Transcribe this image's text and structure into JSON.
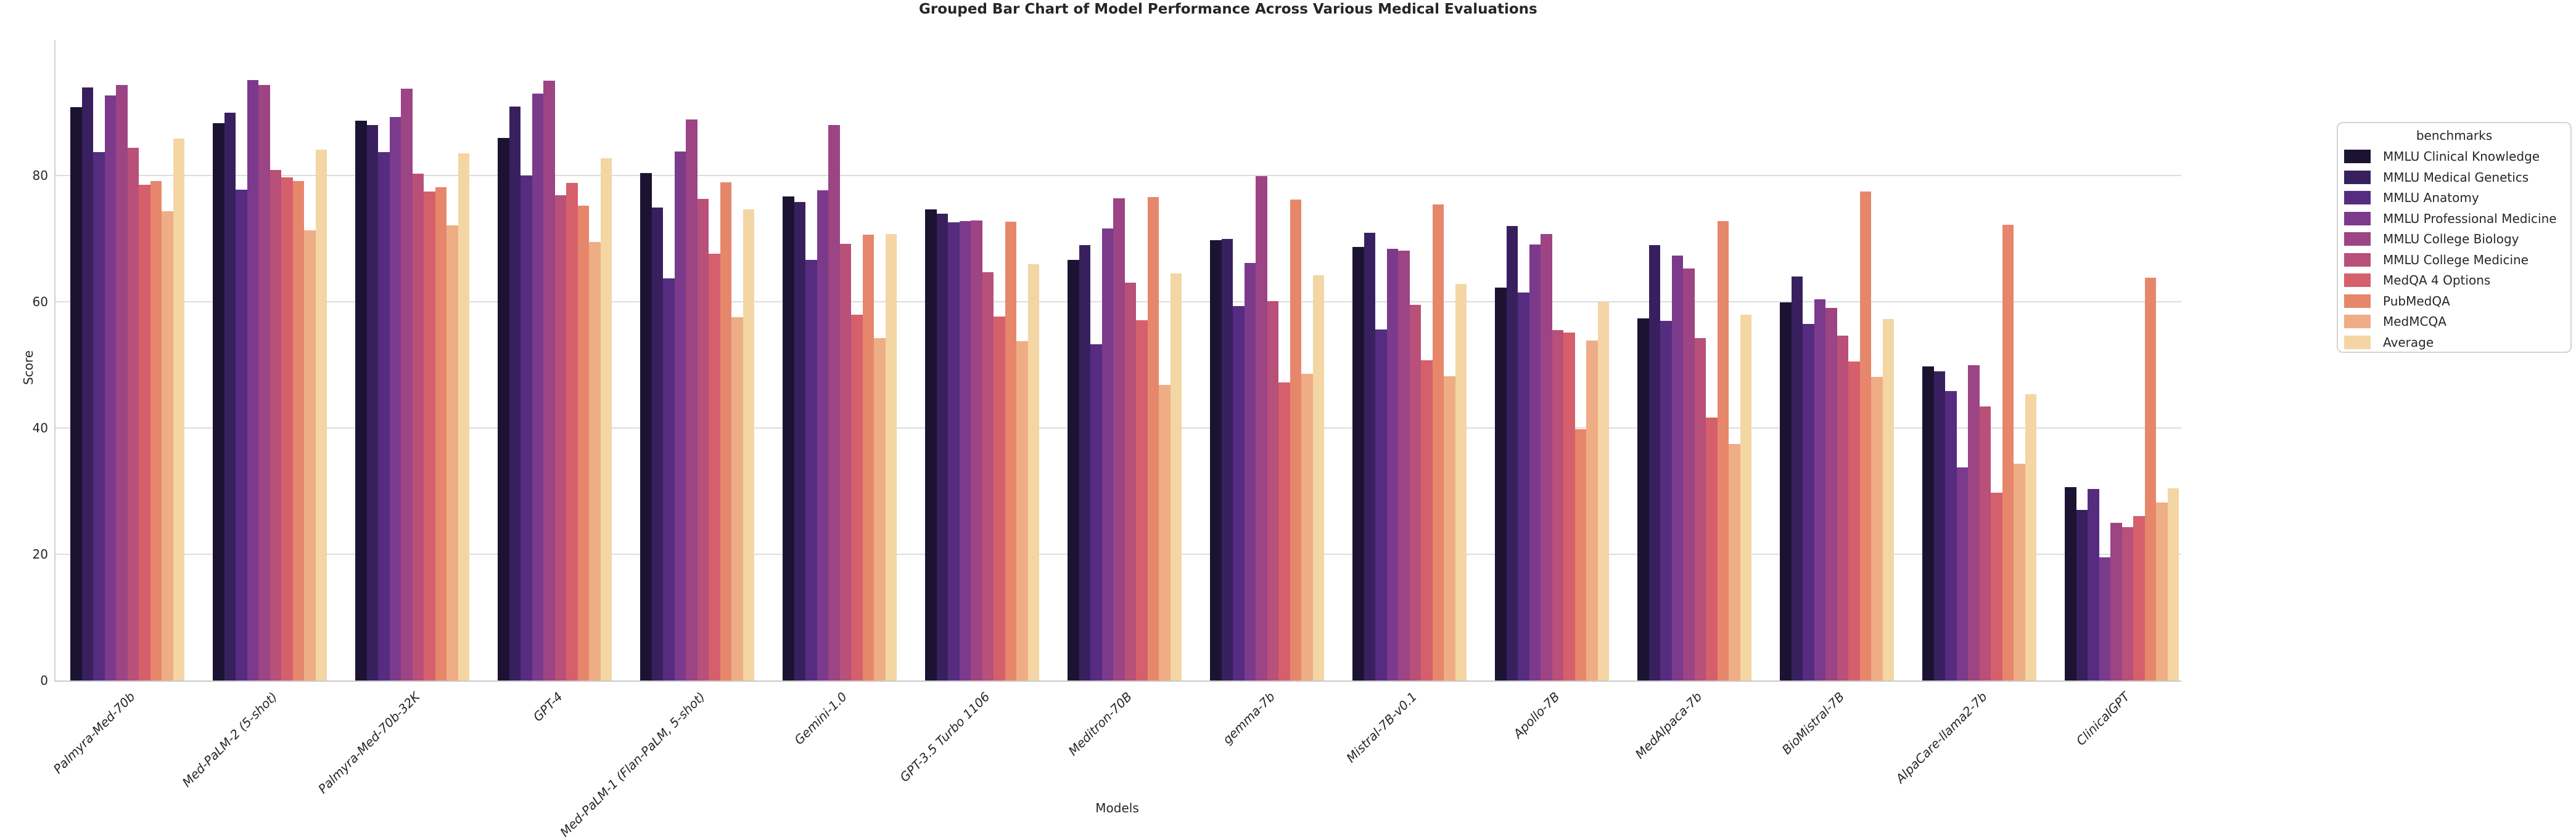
{
  "title": "Grouped Bar Chart of Model Performance Across Various Medical Evaluations",
  "xlabel": "Models",
  "ylabel": "Score",
  "legend_title": "benchmarks",
  "chart_data": {
    "type": "bar",
    "title": "Grouped Bar Chart of Model Performance Across Various Medical Evaluations",
    "xlabel": "Models",
    "ylabel": "Score",
    "ylim": [
      0,
      101.5
    ],
    "yticks": [
      0,
      20,
      40,
      60,
      80
    ],
    "grid": true,
    "legend_position": "right",
    "legend_title": "benchmarks",
    "categories": [
      "Palmyra-Med-70b",
      "Med-PaLM-2 (5-shot)",
      "Palmyra-Med-70b-32K",
      "GPT-4",
      "Med-PaLM-1 (Flan-PaLM, 5-shot)",
      "Gemini-1.0",
      "GPT-3.5 Turbo 1106",
      "Meditron-70B",
      "gemma-7b",
      "Mistral-7B-v0.1",
      "Apollo-7B",
      "MedAlpaca-7b",
      "BioMistral-7B",
      "AlpaCare-llama2-7b",
      "ClinicalGPT"
    ],
    "series": [
      {
        "name": "MMLU Clinical Knowledge",
        "color": "#1c1333",
        "values": [
          90.9,
          88.3,
          88.7,
          86.0,
          80.4,
          76.7,
          74.7,
          66.7,
          69.8,
          68.7,
          62.3,
          57.4,
          59.9,
          49.8,
          30.6
        ]
      },
      {
        "name": "MMLU Medical Genetics",
        "color": "#38205f",
        "values": [
          94.0,
          90.0,
          88.0,
          91.0,
          75.0,
          75.8,
          74.0,
          69.0,
          70.0,
          71.0,
          72.0,
          69.0,
          64.0,
          49.0,
          27.0
        ]
      },
      {
        "name": "MMLU Anatomy",
        "color": "#552c80",
        "values": [
          83.7,
          77.8,
          83.7,
          80.0,
          63.7,
          66.7,
          72.6,
          53.3,
          59.3,
          55.6,
          61.5,
          57.0,
          56.5,
          45.9,
          30.4
        ]
      },
      {
        "name": "MMLU Professional Medicine",
        "color": "#7b3a8c",
        "values": [
          92.7,
          95.2,
          89.3,
          93.0,
          83.8,
          77.7,
          72.8,
          71.6,
          66.2,
          68.4,
          69.1,
          67.3,
          60.4,
          33.8,
          19.5
        ]
      },
      {
        "name": "MMLU College Biology",
        "color": "#9c4484",
        "values": [
          94.4,
          94.4,
          93.8,
          95.1,
          88.9,
          88.0,
          72.9,
          76.4,
          79.9,
          68.1,
          70.8,
          65.3,
          59.0,
          50.0,
          25.0
        ]
      },
      {
        "name": "MMLU College Medicine",
        "color": "#b85079",
        "values": [
          84.4,
          80.9,
          80.3,
          76.9,
          76.3,
          69.2,
          64.7,
          63.0,
          60.1,
          59.5,
          55.5,
          54.3,
          54.7,
          43.4,
          24.3
        ]
      },
      {
        "name": "MedQA 4 Options",
        "color": "#d5606c",
        "values": [
          78.6,
          79.7,
          77.5,
          78.9,
          67.6,
          58.0,
          57.7,
          57.1,
          47.2,
          50.8,
          55.1,
          41.7,
          50.6,
          29.8,
          26.1
        ]
      },
      {
        "name": "PubMedQA",
        "color": "#e6876b",
        "values": [
          79.2,
          79.2,
          78.2,
          75.2,
          79.0,
          70.7,
          72.7,
          76.6,
          76.2,
          75.4,
          39.8,
          72.8,
          77.5,
          72.2,
          63.8
        ]
      },
      {
        "name": "MedMCQA",
        "color": "#efad85",
        "values": [
          74.4,
          71.3,
          72.1,
          69.5,
          57.6,
          54.3,
          53.8,
          46.8,
          48.6,
          48.2,
          53.9,
          37.5,
          48.1,
          34.4,
          28.2
        ]
      },
      {
        "name": "Average",
        "color": "#f3d6a4",
        "values": [
          85.9,
          84.1,
          83.5,
          82.8,
          74.7,
          70.8,
          66.0,
          64.5,
          64.2,
          62.9,
          60.0,
          58.0,
          57.3,
          45.4,
          30.5
        ]
      }
    ]
  }
}
